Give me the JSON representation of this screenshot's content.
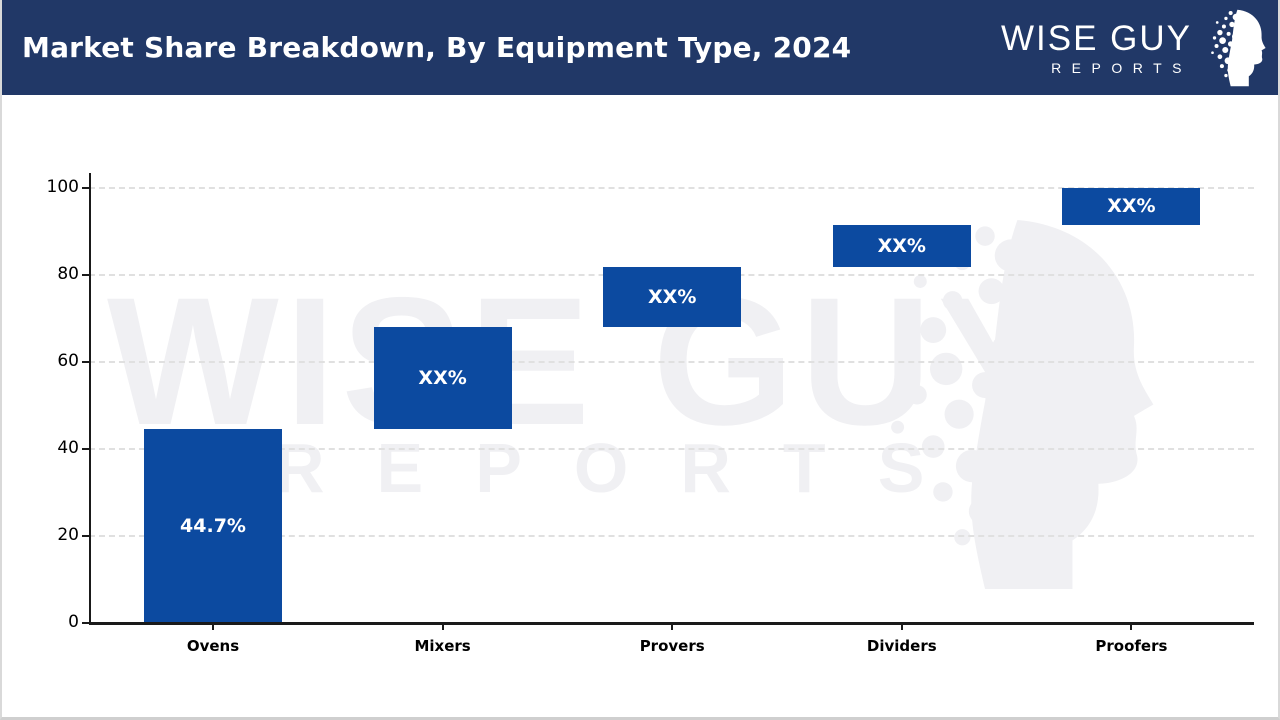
{
  "header": {
    "title": "Market Share Breakdown, By Equipment Type, 2024",
    "background_color": "#213867",
    "logo": {
      "line1": "WISE GUY",
      "line2": "REPORTS"
    }
  },
  "watermark": {
    "line1": "WISE GUY",
    "line2": "REPORTS"
  },
  "chart_data": {
    "type": "bar",
    "variant": "waterfall",
    "title": "Market Share Breakdown, By Equipment Type, 2024",
    "categories": [
      "Ovens",
      "Mixers",
      "Provers",
      "Dividers",
      "Proofers"
    ],
    "segments": [
      {
        "category": "Ovens",
        "start": 0,
        "end": 44.7,
        "value": 44.7,
        "label": "44.7%"
      },
      {
        "category": "Mixers",
        "start": 44.7,
        "end": 68,
        "value": 23.3,
        "label": "XX%"
      },
      {
        "category": "Provers",
        "start": 68,
        "end": 81.8,
        "value": 13.8,
        "label": "XX%"
      },
      {
        "category": "Dividers",
        "start": 81.8,
        "end": 91.5,
        "value": 9.7,
        "label": "XX%"
      },
      {
        "category": "Proofers",
        "start": 91.5,
        "end": 100,
        "value": 8.5,
        "label": "XX%"
      }
    ],
    "xlabel": "",
    "ylabel": "",
    "yticks": [
      0,
      20,
      40,
      60,
      80,
      100
    ],
    "ylim": [
      0,
      105
    ],
    "grid": "horizontal-dashed",
    "legend": "none",
    "bar_color": "#0c4aa0",
    "bar_label_color": "#ffffff"
  }
}
